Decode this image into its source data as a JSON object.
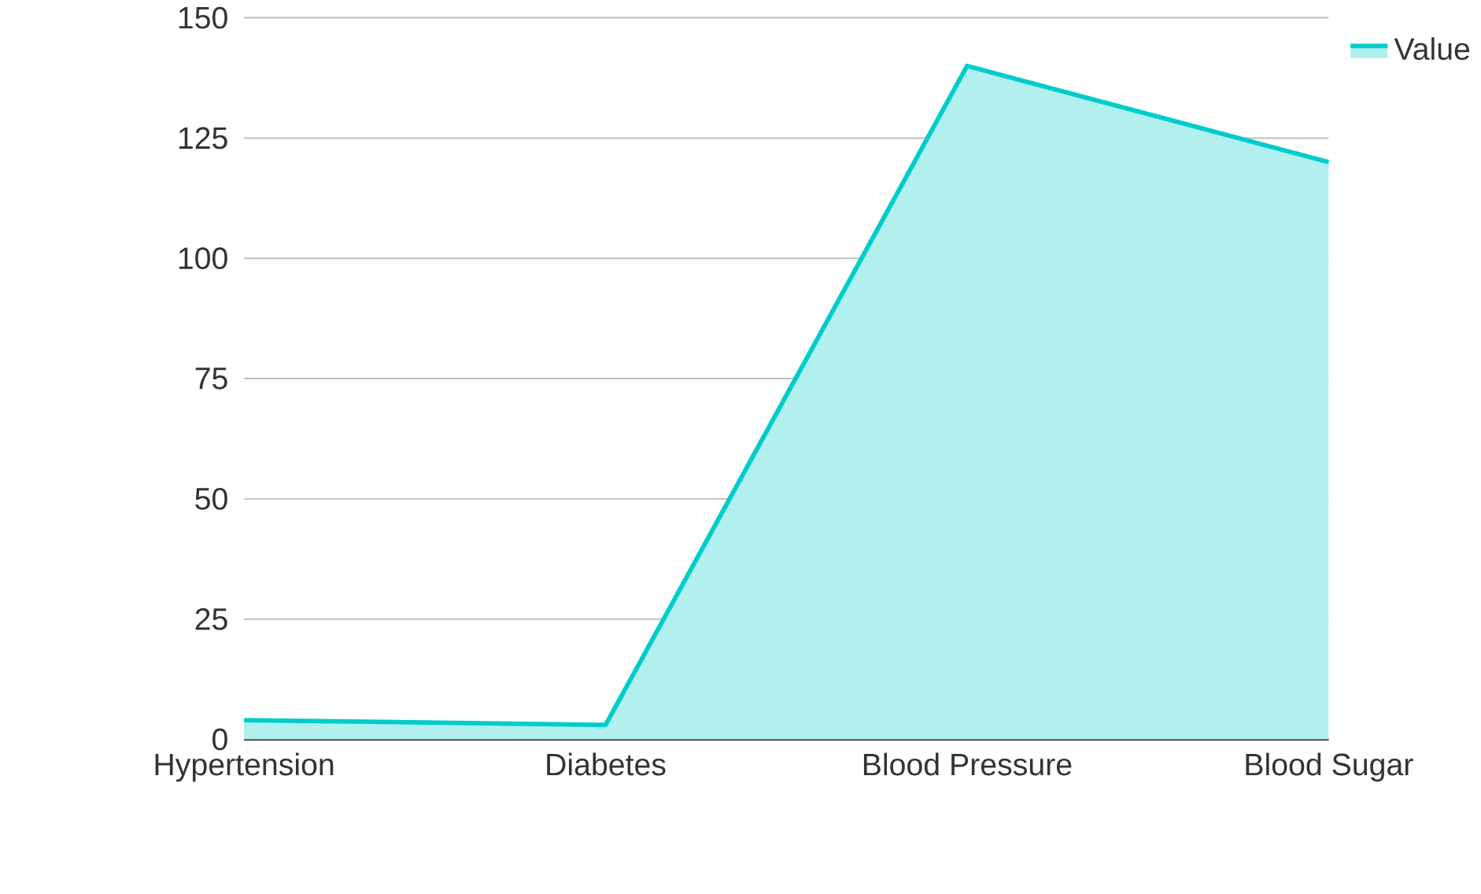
{
  "chart_data": {
    "type": "area",
    "categories": [
      "Hypertension",
      "Diabetes",
      "Blood Pressure",
      "Blood Sugar"
    ],
    "series": [
      {
        "name": "Value",
        "color": "#00cccc",
        "values": [
          4,
          3,
          140,
          120
        ]
      }
    ],
    "ylim": [
      0,
      150
    ],
    "yticks": [
      0,
      25,
      50,
      75,
      100,
      125,
      150
    ],
    "grid": "y",
    "legend": "top right"
  }
}
